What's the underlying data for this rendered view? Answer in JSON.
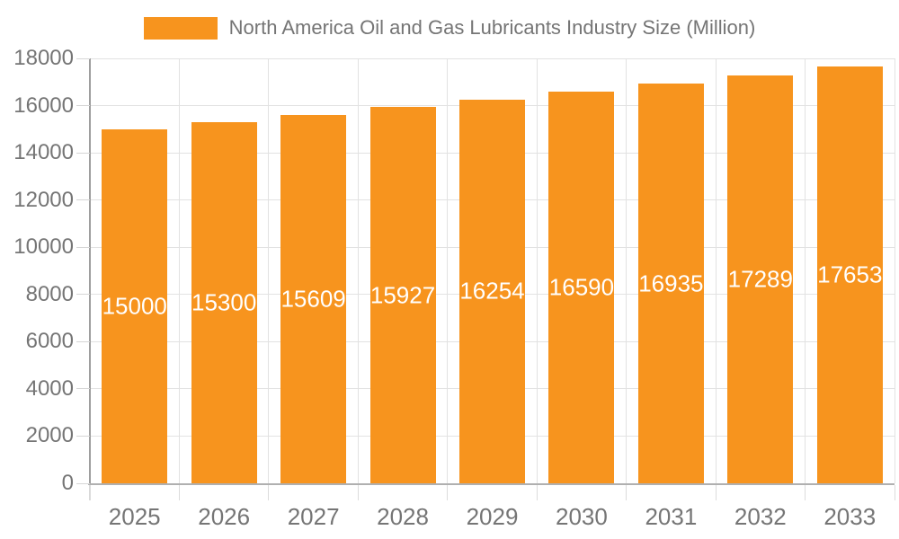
{
  "legend": {
    "label": "North America Oil and Gas Lubricants Industry Size (Million)"
  },
  "chart_data": {
    "type": "bar",
    "title": "North America Oil and Gas Lubricants Industry Size (Million)",
    "categories": [
      "2025",
      "2026",
      "2027",
      "2028",
      "2029",
      "2030",
      "2031",
      "2032",
      "2033"
    ],
    "values": [
      15000,
      15300,
      15609,
      15927,
      16254,
      16590,
      16935,
      17289,
      17653
    ],
    "bar_labels": [
      "15000",
      "15300",
      "15609",
      "15927",
      "16254",
      "16590",
      "16935",
      "17289",
      "17653"
    ],
    "xlabel": "",
    "ylabel": "",
    "ylim": [
      0,
      18000
    ],
    "yticks": [
      0,
      2000,
      4000,
      6000,
      8000,
      10000,
      12000,
      14000,
      16000,
      18000
    ],
    "ytick_labels": [
      "0",
      "2000",
      "4000",
      "6000",
      "8000",
      "10000",
      "12000",
      "14000",
      "16000",
      "18000"
    ],
    "grid": true,
    "legend_position": "top"
  },
  "colors": {
    "bar": "#F7941E",
    "bar_value_text": "#FFFFFF",
    "axis_text": "#757575",
    "legend_text": "#757575",
    "y_axis_line": "#9E9E9E",
    "x_axis_line": "#B0B0B0",
    "gridline": "#E2E2E2",
    "background": "#FFFFFF"
  }
}
